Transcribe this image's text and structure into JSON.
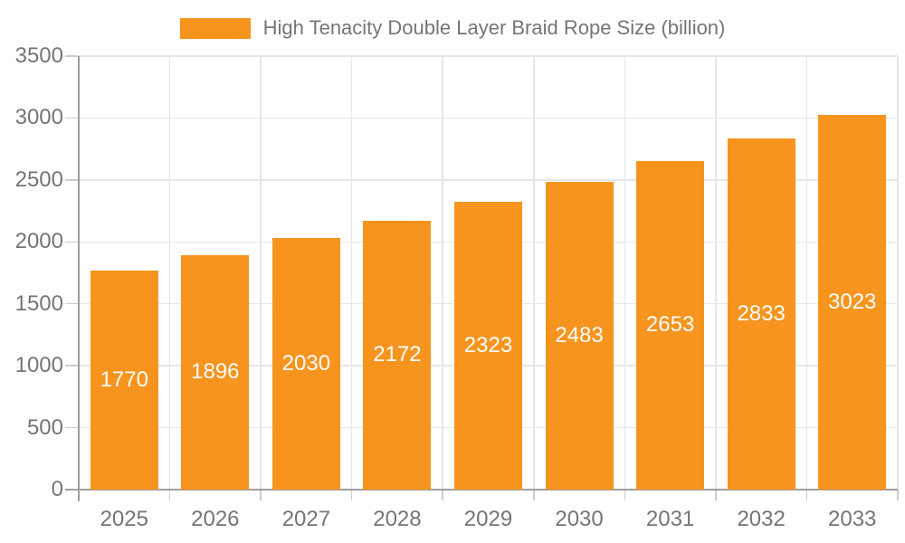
{
  "legend": {
    "label": "High Tenacity Double Layer Braid Rope Size (billion)"
  },
  "chart_data": {
    "type": "bar",
    "title": "High Tenacity Double Layer Braid Rope Size (billion)",
    "categories": [
      "2025",
      "2026",
      "2027",
      "2028",
      "2029",
      "2030",
      "2031",
      "2032",
      "2033"
    ],
    "values": [
      1770,
      1896,
      2030,
      2172,
      2323,
      2483,
      2653,
      2833,
      3023
    ],
    "xlabel": "",
    "ylabel": "",
    "ylim": [
      0,
      3500
    ],
    "ytick_step": 500,
    "yticks": [
      0,
      500,
      1000,
      1500,
      2000,
      2500,
      3000,
      3500
    ],
    "grid": true,
    "legend_position": "top-center",
    "value_labels": "inside-center",
    "colors": {
      "bar": "#F7941E",
      "value_label": "#FFFFFF",
      "axis_line": "#9E9E9E",
      "tick_mark": "#CCCCCC",
      "gridline": "#E6E6E6",
      "axis_text": "#757575"
    }
  }
}
